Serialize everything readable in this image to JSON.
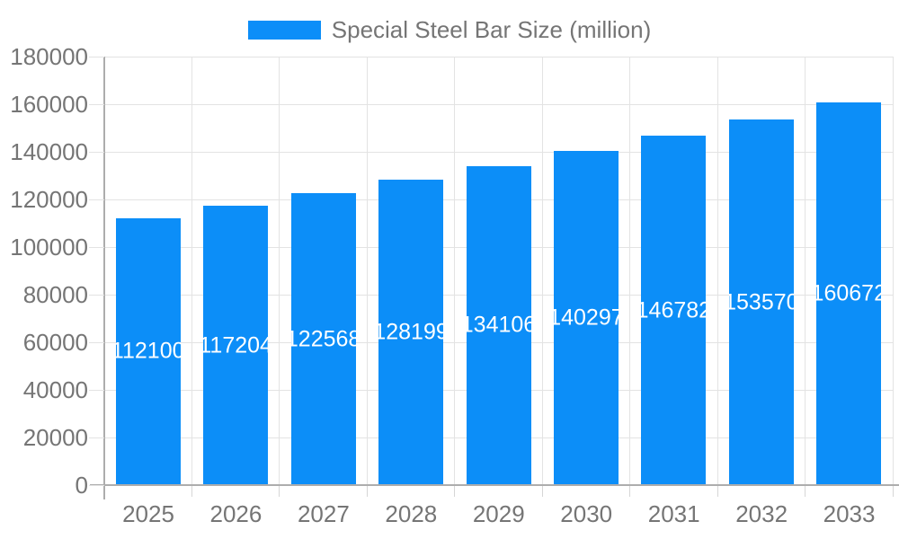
{
  "legend": {
    "label": "Special Steel Bar Size (million)"
  },
  "colors": {
    "bar": "#0c8ef8",
    "axis_text": "#757575",
    "grid_line": "#e3e3e3",
    "axis_line": "#adadad",
    "bar_label_text": "#ffffff",
    "background": "#ffffff"
  },
  "chart_data": {
    "type": "bar",
    "title": "",
    "categories": [
      "2025",
      "2026",
      "2027",
      "2028",
      "2029",
      "2030",
      "2031",
      "2032",
      "2033"
    ],
    "series": [
      {
        "name": "Special Steel Bar Size (million)",
        "values": [
          112100,
          117204,
          122568,
          128199,
          134106,
          140297,
          146782,
          153570,
          160672
        ]
      }
    ],
    "value_labels": [
      112100,
      117204,
      122568,
      128199,
      134106,
      140297,
      146782,
      153570,
      160672
    ],
    "value_label_position": "inside-center",
    "xlabel": "",
    "ylabel": "",
    "ylim": [
      0,
      180000
    ],
    "yticks": [
      0,
      20000,
      40000,
      60000,
      80000,
      100000,
      120000,
      140000,
      160000,
      180000
    ],
    "grid": true,
    "legend_position": "top"
  }
}
